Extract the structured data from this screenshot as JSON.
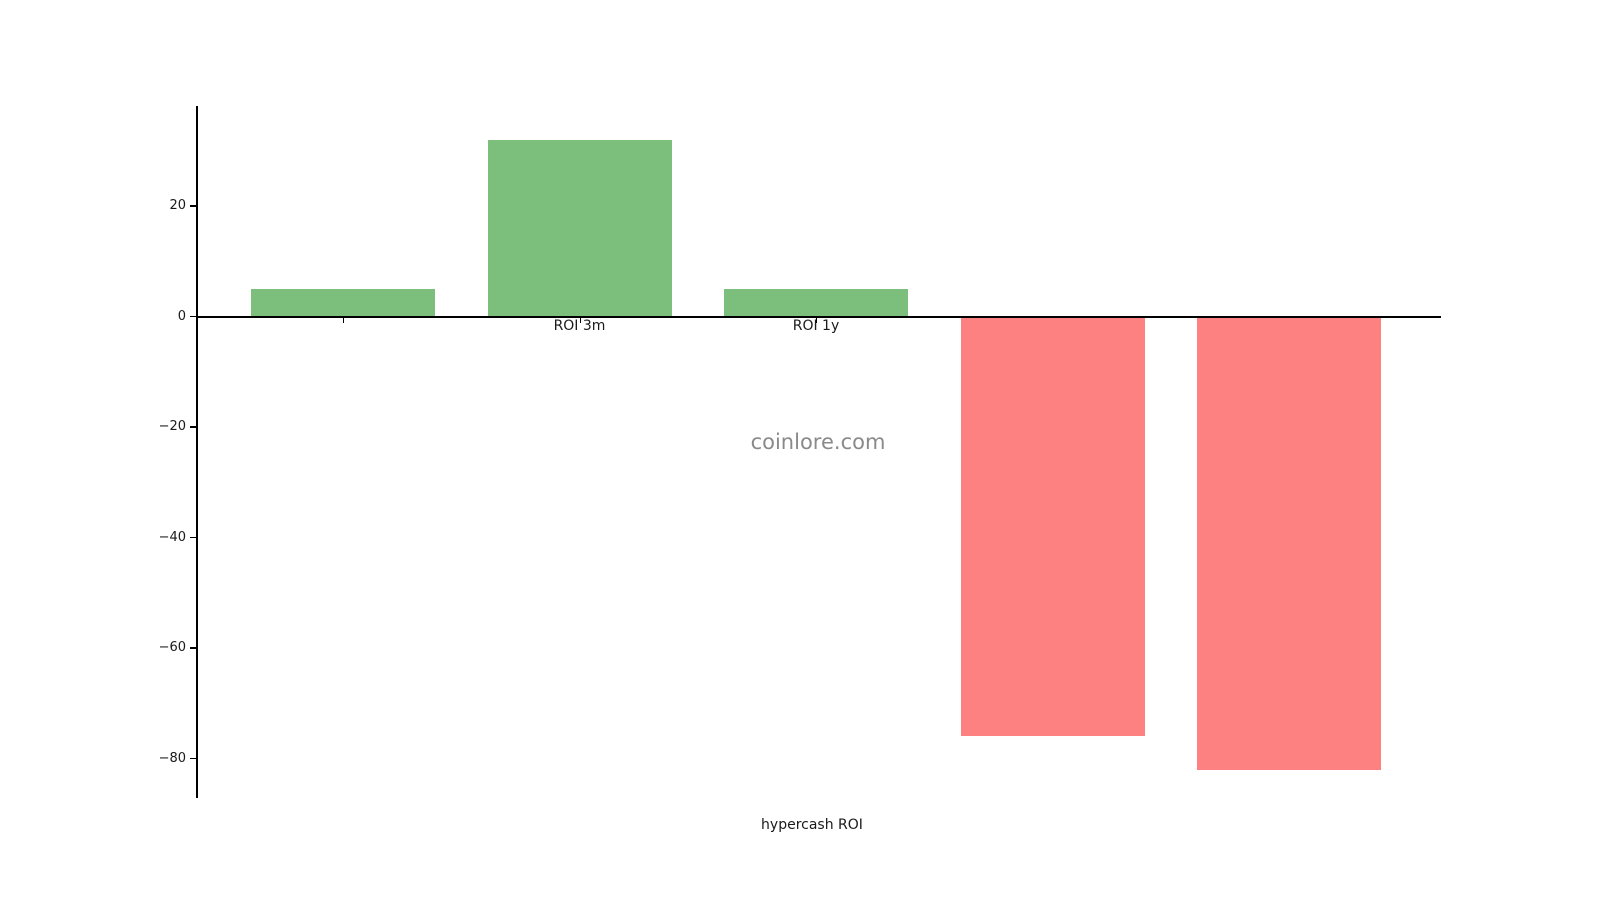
{
  "watermark": "coinlore.com",
  "chart_data": {
    "type": "bar",
    "title": "",
    "xlabel": "hypercash ROI",
    "ylabel": "",
    "categories": [
      "",
      "ROI 3m",
      "ROI 1y",
      "",
      ""
    ],
    "values": [
      5,
      32,
      5,
      -76,
      -82
    ],
    "bar_colors": [
      "#7cbf7d",
      "#7cbf7d",
      "#7cbf7d",
      "#fd8181",
      "#fd8181"
    ],
    "positive_color": "#7cbf7d",
    "negative_color": "#fd8181",
    "yticks": [
      20,
      0,
      -20,
      -40,
      -60,
      -80
    ],
    "ylim": [
      -87.7,
      38.1
    ],
    "grid": false,
    "legend": "none",
    "axis_color": "#000000",
    "tick_label_color": "#1a1a1a",
    "watermark_color": "#8a8a8a"
  }
}
